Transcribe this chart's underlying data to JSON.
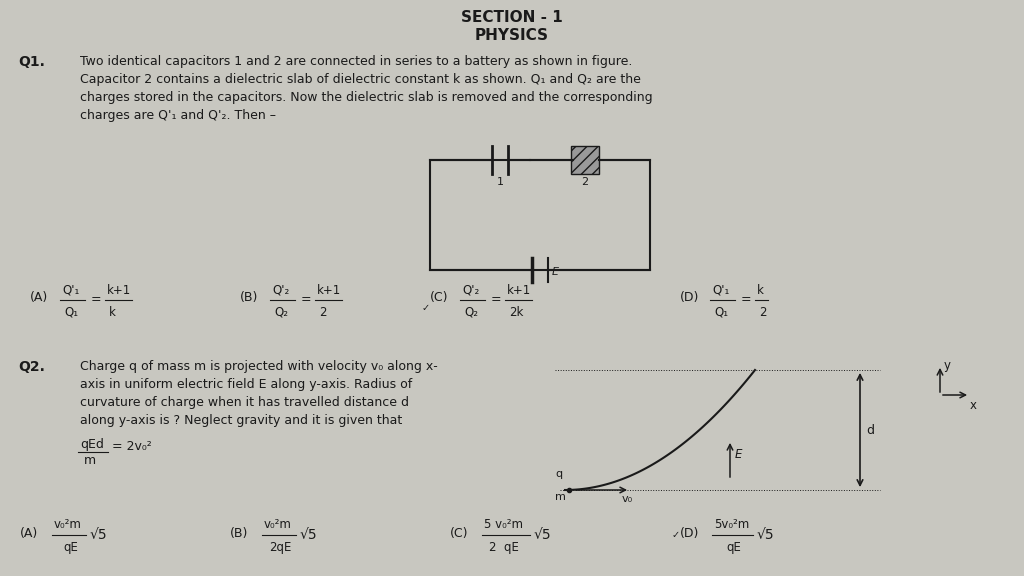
{
  "bg_color": "#c8c7c0",
  "text_color": "#1a1a1a",
  "title": "SECTION - 1",
  "subtitle": "PHYSICS",
  "figsize": [
    10.24,
    5.76
  ],
  "dpi": 100,
  "xlim": [
    0,
    1024
  ],
  "ylim": [
    0,
    576
  ]
}
